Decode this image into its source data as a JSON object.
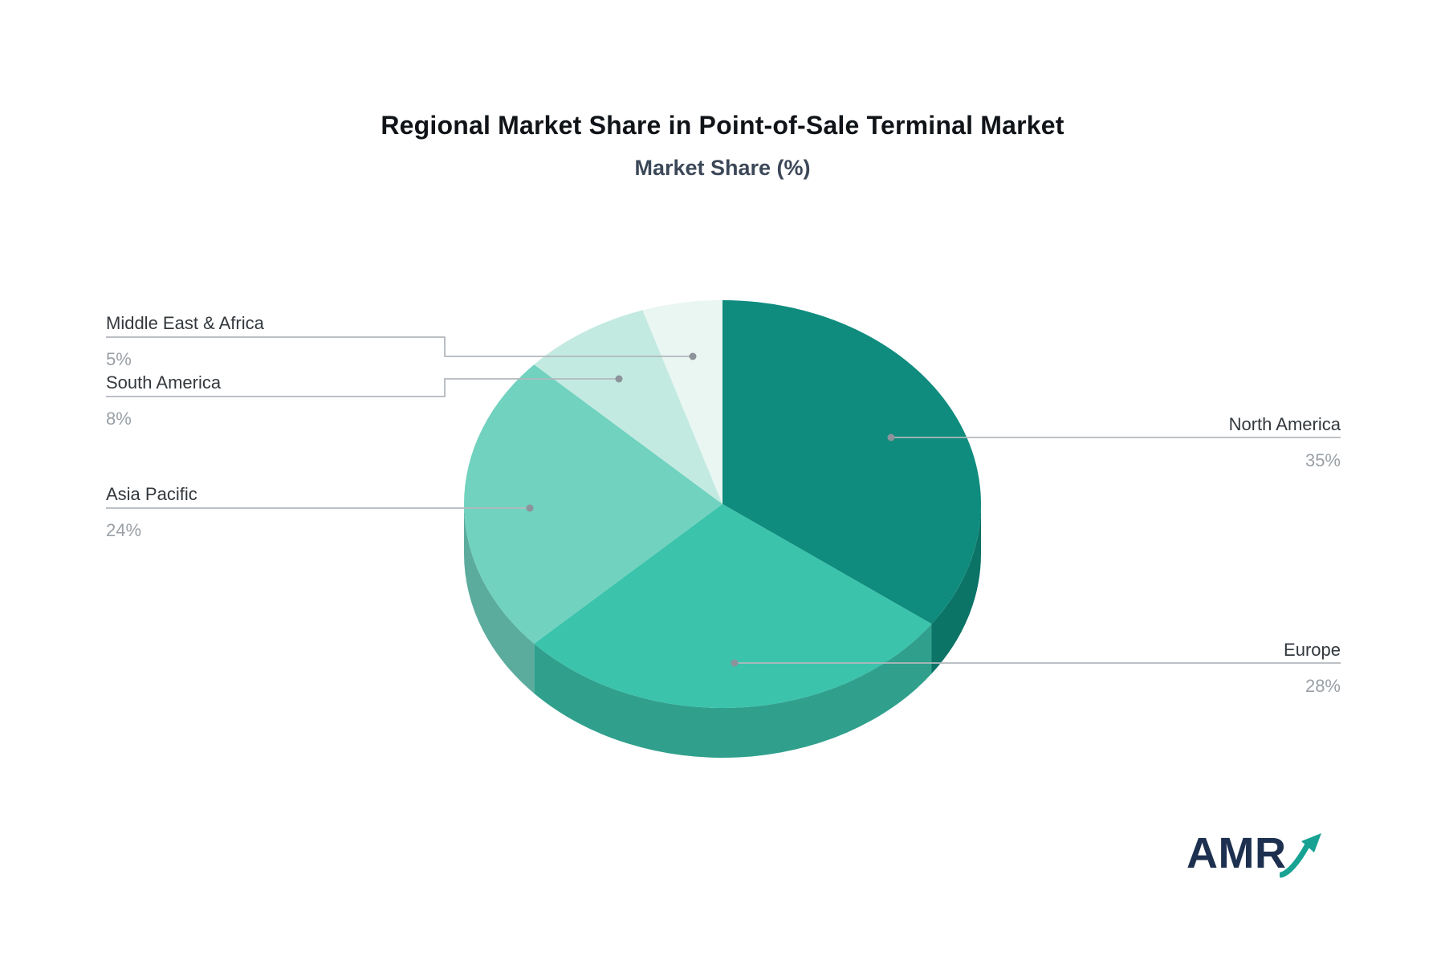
{
  "header": {
    "title": "Regional Market Share in Point-of-Sale Terminal Market",
    "subtitle": "Market Share (%)"
  },
  "chart_data": {
    "type": "pie",
    "style": "3d",
    "title": "Regional Market Share in Point-of-Sale Terminal Market",
    "subtitle": "Market Share (%)",
    "unit": "%",
    "start_angle_deg": -90,
    "direction": "clockwise",
    "legend_position": "none",
    "labels": [
      "North America",
      "Europe",
      "Asia Pacific",
      "South America",
      "Middle East & Africa"
    ],
    "values": [
      35,
      28,
      24,
      8,
      5
    ],
    "display_values": [
      "35%",
      "28%",
      "24%",
      "8%",
      "5%"
    ],
    "colors": [
      "#0F8C7E",
      "#3BC3AC",
      "#70D2BF",
      "#C3EAE1",
      "#E9F6F2"
    ],
    "label_color": "#33383d",
    "value_color": "#9aa0a6",
    "leader_line_color": "#b3b8bd",
    "leader_dot_color": "#8d939a"
  },
  "logo": {
    "text": "AMR",
    "color": "#1D3050",
    "arrow_color": "#17A293"
  }
}
